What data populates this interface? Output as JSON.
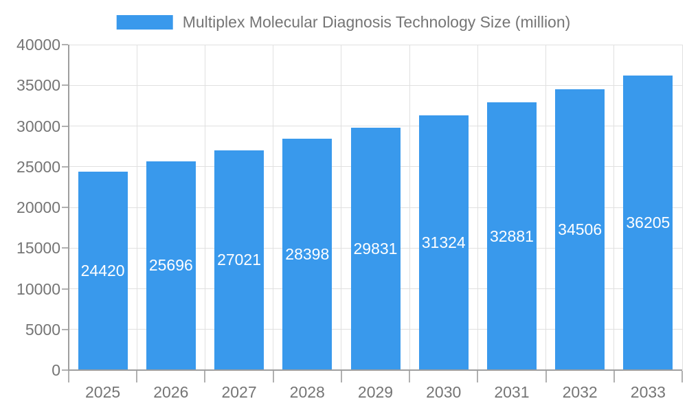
{
  "legend": {
    "series_label": "Multiplex Molecular Diagnosis Technology Size (million)"
  },
  "chart_data": {
    "type": "bar",
    "title": "Multiplex Molecular Diagnosis Technology Size (million)",
    "categories": [
      "2025",
      "2026",
      "2027",
      "2028",
      "2029",
      "2030",
      "2031",
      "2032",
      "2033"
    ],
    "values": [
      24420,
      25696,
      27021,
      28398,
      29831,
      31324,
      32881,
      34506,
      36205
    ],
    "xlabel": "",
    "ylabel": "",
    "ylim": [
      0,
      40000
    ],
    "ytick_step": 5000,
    "grid": true,
    "legend_position": "top-center",
    "colors": {
      "bar": "#3999EC",
      "value_label": "#FFFFFF",
      "axis_line": "#9E9E9E",
      "tick_mark": "#B0B0B0",
      "gridline": "#E0E0E0",
      "text": "#757575"
    }
  }
}
